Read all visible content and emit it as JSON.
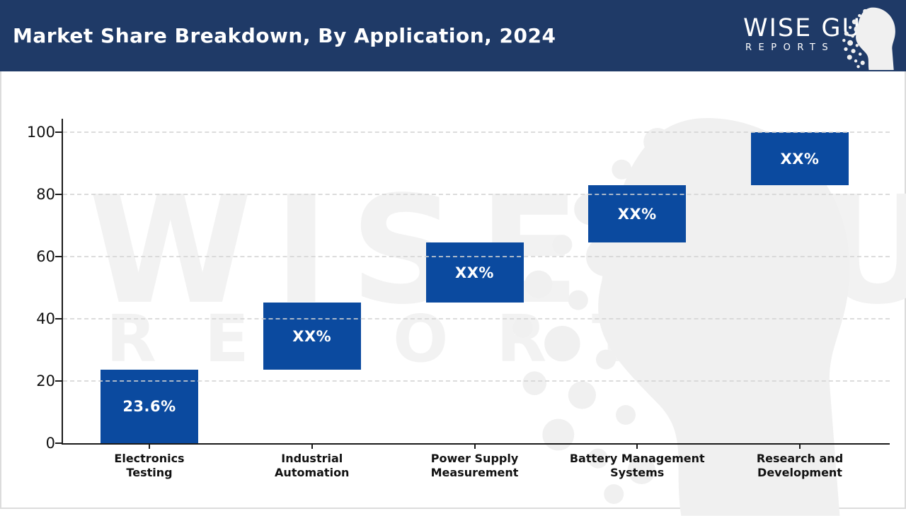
{
  "header": {
    "title": "Market Share Breakdown, By Application, 2024",
    "logo": {
      "line1": "WISE GUY",
      "line2": "REPORTS"
    }
  },
  "watermark": {
    "line1": "WISE GUY",
    "line2": "REPORTS"
  },
  "colors": {
    "header_bg": "#1f3a67",
    "bar": "#0b4a9f",
    "gridline": "#d3d3d3",
    "axis": "#1a1a1a",
    "watermark": "#f2f2f2"
  },
  "chart_data": {
    "type": "bar",
    "subtype": "waterfall-stacked-percent",
    "title": "Market Share Breakdown, By Application, 2024",
    "xlabel": "",
    "ylabel": "",
    "ylim": [
      0,
      100
    ],
    "yticks": [
      0,
      20,
      40,
      60,
      80,
      100
    ],
    "grid": "horizontal-dashed",
    "legend": "none",
    "categories": [
      [
        "Electronics",
        "Testing"
      ],
      [
        "Industrial",
        "Automation"
      ],
      [
        "Power Supply",
        "Measurement"
      ],
      [
        "Battery Management",
        "Systems"
      ],
      [
        "Research and",
        "Development"
      ]
    ],
    "segments": [
      {
        "category": "Electronics Testing",
        "start": 0,
        "end": 23.6,
        "label": "23.6%"
      },
      {
        "category": "Industrial Automation",
        "start": 23.6,
        "end": 45.2,
        "label": "XX%"
      },
      {
        "category": "Power Supply Measurement",
        "start": 45.2,
        "end": 64.5,
        "label": "XX%"
      },
      {
        "category": "Battery Management Systems",
        "start": 64.5,
        "end": 82.9,
        "label": "XX%"
      },
      {
        "category": "Research and Development",
        "start": 82.9,
        "end": 100,
        "label": "XX%"
      }
    ]
  }
}
